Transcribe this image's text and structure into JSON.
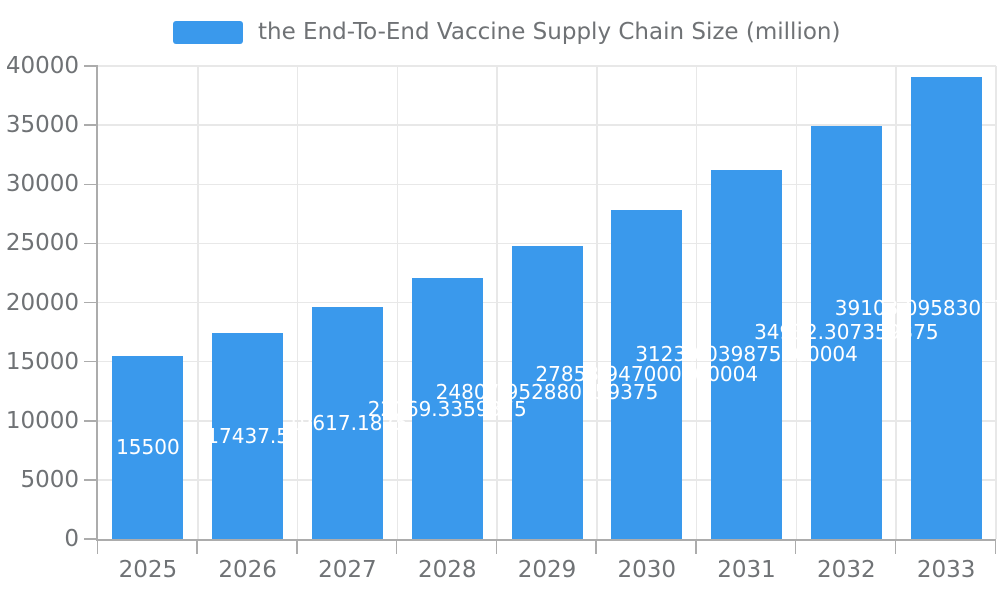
{
  "legend": {
    "label": "the End-To-End Vaccine Supply Chain Size (million)"
  },
  "chart_data": {
    "type": "bar",
    "title": "the End-To-End Vaccine Supply Chain Size (million)",
    "xlabel": "",
    "ylabel": "",
    "categories": [
      "2025",
      "2026",
      "2027",
      "2028",
      "2029",
      "2030",
      "2031",
      "2032",
      "2033"
    ],
    "values": [
      15500,
      17437.5,
      19617.1875,
      22069.3359375,
      24807.952880859375,
      27853.947000000004,
      31230.039875000002,
      34932.307359375,
      39103.095830578124
    ],
    "value_labels": [
      "15500",
      "17437.5",
      "19617.1875",
      "22069.3359375",
      "24807.952880859375",
      "27853.947000000004",
      "31230.039875000004",
      "34932.307359375",
      "39103.095830578125"
    ],
    "ylim": [
      0,
      40000
    ],
    "yticks": [
      0,
      5000,
      10000,
      15000,
      20000,
      25000,
      30000,
      35000,
      40000
    ],
    "ytick_labels": [
      "0",
      "5000",
      "10000",
      "15000",
      "20000",
      "25000",
      "30000",
      "35000",
      "40000"
    ],
    "grid": true,
    "legend_position": "top"
  },
  "colors": {
    "accent": "#3A99EC",
    "grid_line": "#E8E8E8",
    "axis_line": "#ACACAC",
    "text": "#6F7275",
    "bar_label": "#FFFFFF",
    "background": "#FFFFFF"
  }
}
